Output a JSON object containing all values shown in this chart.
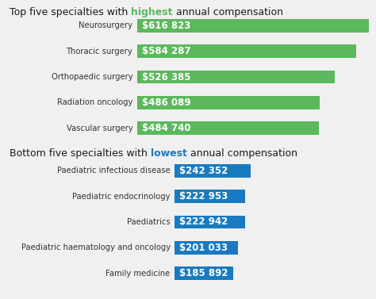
{
  "top_labels": [
    "Neurosurgery",
    "Thoracic surgery",
    "Orthopaedic surgery",
    "Radiation oncology",
    "Vascular surgery"
  ],
  "top_values": [
    616823,
    584287,
    526385,
    486089,
    484740
  ],
  "top_display": [
    "$616 823",
    "$584 287",
    "$526 385",
    "$486 089",
    "$484 740"
  ],
  "top_color": "#5cb85c",
  "bottom_labels": [
    "Paediatric infectious disease",
    "Paediatric endocrinology",
    "Paediatrics",
    "Paediatric haematology and oncology",
    "Family medicine"
  ],
  "bottom_values": [
    242352,
    222953,
    222942,
    201033,
    185892
  ],
  "bottom_display": [
    "$242 352",
    "$222 953",
    "$222 942",
    "$201 033",
    "$185 892"
  ],
  "bottom_color": "#1a7abf",
  "title_color_high": "#5cb85c",
  "title_color_low": "#1a7abf",
  "title_color_text": "#1a1a1a",
  "bg_color": "#f0f0f0",
  "label_fontsize": 7.2,
  "value_fontsize": 8.5,
  "title_fontsize": 9.0
}
